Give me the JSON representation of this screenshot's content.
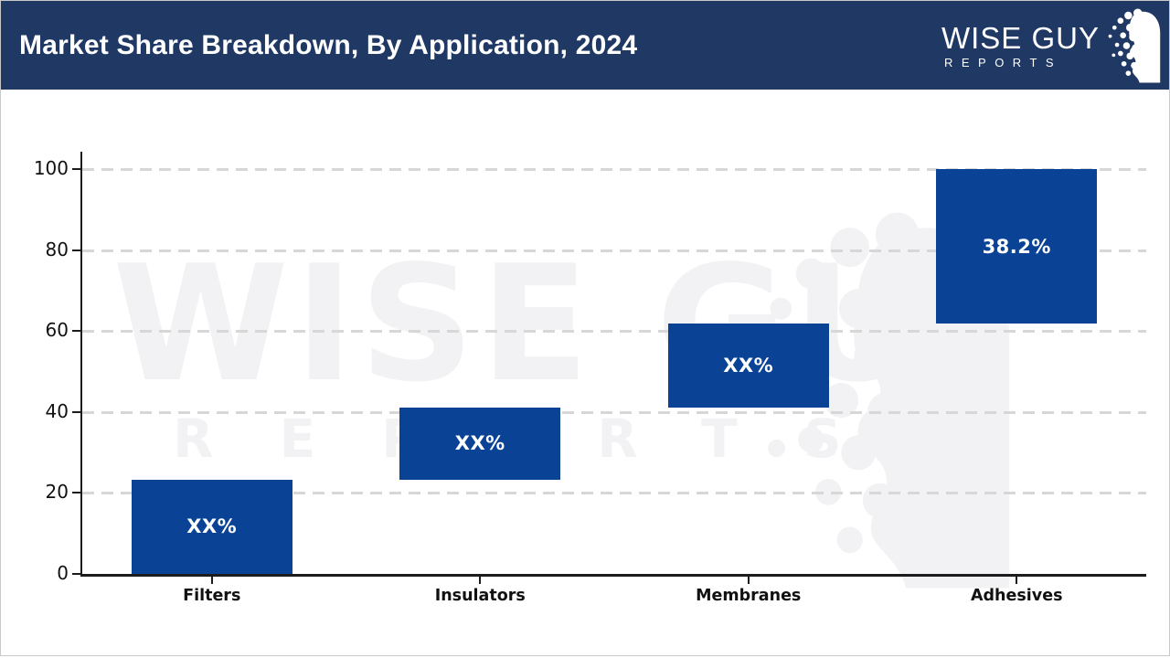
{
  "header": {
    "title": "Market Share Breakdown, By Application, 2024",
    "bg_color": "#1f3864",
    "logo": {
      "line1": "WISE GUY",
      "line2": "REPORTS"
    }
  },
  "watermark": {
    "line1": "WISE GUY",
    "line2": "REPORTS"
  },
  "colors": {
    "bar_blue": "#0a4396",
    "header_navy": "#1f3864",
    "gridline_gray": "#d7d7d7",
    "watermark_gray": "#f2f2f4"
  },
  "chart_data": {
    "type": "bar",
    "subtype": "floating-waterfall",
    "title": "Market Share Breakdown, By Application, 2024",
    "categories": [
      "Filters",
      "Insulators",
      "Membranes",
      "Adhesives"
    ],
    "bars": [
      {
        "category": "Filters",
        "start": 0,
        "end": 23.3,
        "size": 23.3,
        "label": "XX%"
      },
      {
        "category": "Insulators",
        "start": 23.3,
        "end": 41.1,
        "size": 17.8,
        "label": "XX%"
      },
      {
        "category": "Membranes",
        "start": 41.1,
        "end": 61.8,
        "size": 20.7,
        "label": "XX%"
      },
      {
        "category": "Adhesives",
        "start": 61.8,
        "end": 100,
        "size": 38.2,
        "label": "38.2%"
      }
    ],
    "xlabel": "",
    "ylabel": "",
    "yticks": [
      0,
      20,
      40,
      60,
      80,
      100
    ],
    "ylim": [
      0,
      104
    ],
    "grid": "horizontal-dashed",
    "legend": "none",
    "bar_color": "#0a4396",
    "bar_label_color": "#ffffff"
  }
}
